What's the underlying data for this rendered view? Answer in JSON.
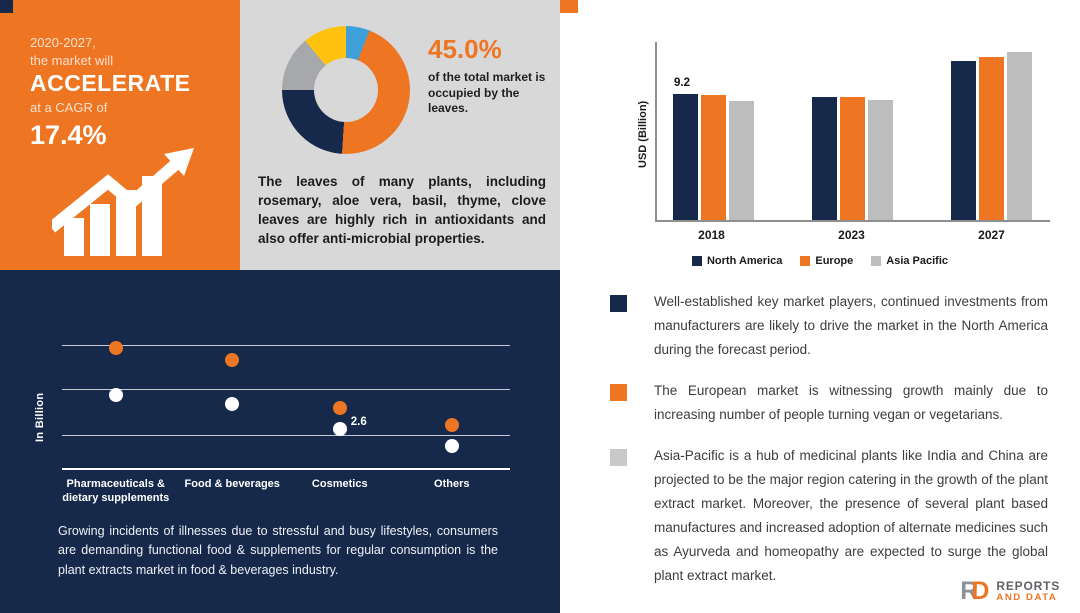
{
  "brand": {
    "orange": "#ee7522",
    "navy": "#16294b",
    "panel_gray": "#d8d8d8"
  },
  "cagr_panel": {
    "line1": "2020-2027,",
    "line2": "the market will",
    "line3": "ACCELERATE",
    "line4": "at a CAGR of",
    "line5": "17.4%"
  },
  "donut_panel": {
    "stat": "45.0%",
    "stat_caption": "of the total market is occupied by the leaves.",
    "paragraph": "The leaves of many plants, including rosemary, aloe vera, basil, thyme, clove leaves are highly rich in antioxidants and also offer anti-microbial properties."
  },
  "dot_panel": {
    "paragraph": "Growing incidents of illnesses due to stressful and busy lifestyles, consumers are demanding functional food & supplements for regular consumption is the plant extracts market in food & beverages industry."
  },
  "bullets": [
    {
      "color": "#16294b",
      "text": "Well-established key market players, continued investments from manufacturers are likely to drive the market in the North America during the forecast period."
    },
    {
      "color": "#ee7522",
      "text": "The European market is witnessing growth mainly due to increasing number of people turning vegan or vegetarians."
    },
    {
      "color": "#c9c9c9",
      "text": "Asia-Pacific is a hub of medicinal plants like India and China are projected to be the major region catering in the growth of the plant extract market. Moreover, the presence of several plant based manufactures and increased adoption of alternate medicines such as Ayurveda and homeopathy are expected to surge the global plant extract market."
    }
  ],
  "logo": {
    "mark_r": "R",
    "mark_d": "D",
    "line1": "REPORTS",
    "line2": "AND DATA"
  },
  "chart_data": [
    {
      "id": "donut",
      "type": "pie",
      "annotation": {
        "text": "45.0%",
        "caption": "of the total market is occupied by the leaves."
      },
      "slices": [
        {
          "value": 6,
          "color": "#3f9fd8"
        },
        {
          "value": 45,
          "color": "#ee7522"
        },
        {
          "value": 24,
          "color": "#16294b"
        },
        {
          "value": 14,
          "color": "#a6a8ab"
        },
        {
          "value": 11,
          "color": "#ffc20e"
        }
      ]
    },
    {
      "id": "dot-plot",
      "type": "scatter",
      "ylabel": "In Billion",
      "ylim": [
        0,
        10
      ],
      "grid": true,
      "categories": [
        "Pharmaceuticals & dietary supplements",
        "Food & beverages",
        "Cosmetics",
        "Others"
      ],
      "x_centers_pct": [
        12,
        38,
        62,
        87
      ],
      "series": [
        {
          "name": "series-1",
          "color": "#ee7522",
          "values": [
            8.0,
            7.2,
            4.0,
            2.9
          ]
        },
        {
          "name": "series-2",
          "color": "#ffffff",
          "values": [
            4.9,
            4.3,
            2.6,
            1.5
          ]
        }
      ],
      "annotation": {
        "text": "2.6",
        "category": "Cosmetics",
        "series": "series-2"
      }
    },
    {
      "id": "regional-bars",
      "type": "bar",
      "ylabel": "USD (Billion)",
      "ylim": [
        0,
        13
      ],
      "grid": false,
      "legend_position": "bottom",
      "categories": [
        "2018",
        "2023",
        "2027"
      ],
      "series": [
        {
          "name": "North America",
          "color": "#16294b",
          "values": [
            9.2,
            9.0,
            11.6
          ]
        },
        {
          "name": "Europe",
          "color": "#ee7522",
          "values": [
            9.1,
            9.0,
            11.9
          ]
        },
        {
          "name": "Asia Pacific",
          "color": "#bdbdbd",
          "values": [
            8.7,
            8.8,
            12.3
          ]
        }
      ],
      "annotation": {
        "text": "9.2",
        "category": "2018",
        "series": "North America"
      }
    }
  ]
}
